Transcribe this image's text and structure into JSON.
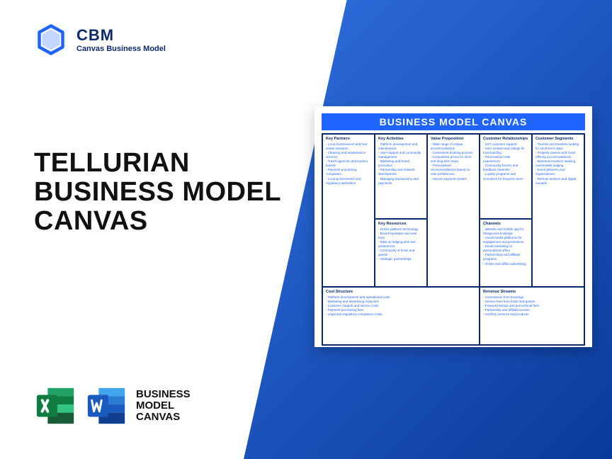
{
  "logo": {
    "brand": "CBM",
    "sub": "Canvas Business Model"
  },
  "title": {
    "l1": "TELLURIAN",
    "l2": "BUSINESS MODEL",
    "l3": "CANVAS"
  },
  "bottom_label": {
    "l1": "BUSINESS",
    "l2": "MODEL",
    "l3": "CANVAS"
  },
  "canvas": {
    "header": "BUSINESS MODEL CANVAS",
    "sections": {
      "kp": {
        "title": "Key Partners",
        "items": [
          "Local homeowners and real estate investors",
          "Cleaning and maintenance services",
          "Travel agencies and tourism boards",
          "Payment processing companies",
          "Local governments and regulatory authorities"
        ]
      },
      "ka": {
        "title": "Key Activities",
        "items": [
          "Platform development and maintenance",
          "User support and community management",
          "Marketing and brand promotion",
          "Partnership and network development",
          "Managing transactions and payments"
        ]
      },
      "vp": {
        "title": "Value Proposition",
        "items": [
          "Wide range of unique accommodations",
          "Convenient booking process",
          "Competitive prices for short and long-term stays",
          "Personalized recommendations based on user preferences",
          "Secure payment system"
        ]
      },
      "cr": {
        "title": "Customer Relationships",
        "items": [
          "24/7 customer support",
          "User reviews and ratings for trust-building",
          "Personalized user experiences",
          "Community forums and feedback channels",
          "Loyalty programs and incentives for frequent users"
        ]
      },
      "cs": {
        "title": "Customer Segments",
        "items": [
          "Tourists and travelers looking for short-term stays",
          "Property owners and hosts offering accommodations",
          "Business travelers seeking comfortable lodging",
          "Event planners and organizations",
          "Remote workers and digital nomads"
        ]
      },
      "kr": {
        "title": "Key Resources",
        "items": [
          "Online platform technology",
          "Brand reputation and user trust",
          "Data on lodging and user preferences",
          "Community of hosts and guests",
          "Strategic partnerships"
        ]
      },
      "ch": {
        "title": "Channels",
        "items": [
          "Website and mobile app for listings and bookings",
          "Social media platforms for engagement and promotions",
          "Email marketing for personalized offers",
          "Partnerships and affiliate programs",
          "Online and offline advertising"
        ]
      },
      "cost": {
        "title": "Cost Structure",
        "items": [
          "Platform development and operational costs",
          "Marketing and advertising expenses",
          "Customer support and service costs",
          "Payment processing fees",
          "Legal and regulatory compliance costs"
        ]
      },
      "rev": {
        "title": "Revenue Streams",
        "items": [
          "Commission from bookings",
          "Service fees from hosts and guests",
          "Featured listings and promotional fees",
          "Partnership and affiliate income",
          "Ancillary services and products"
        ]
      }
    }
  },
  "colors": {
    "brand_blue": "#1f64ff",
    "dark_blue": "#0b2a6b",
    "excel_green": "#107c41",
    "excel_green_dark": "#0b5a2e",
    "word_blue": "#2b579a",
    "word_blue_dark": "#1c3e70"
  }
}
